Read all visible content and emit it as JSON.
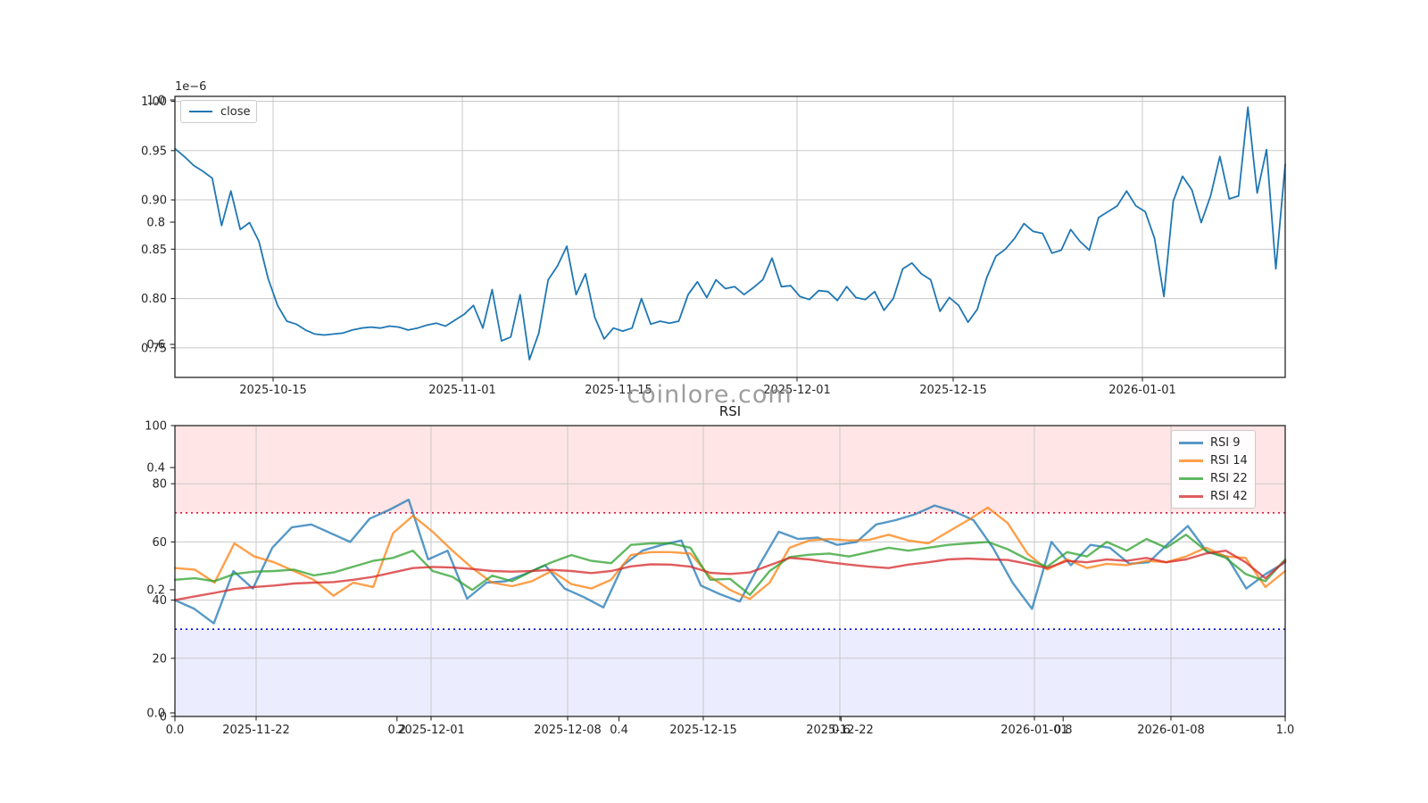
{
  "watermark": "coinlore.com",
  "colors": {
    "price_line": "#1f77b4",
    "rsi9": "#1f77b4",
    "rsi14": "#ff7f0e",
    "rsi22": "#2ca02c",
    "rsi42": "#d62728",
    "overbought_line": "#dc143c",
    "oversold_line": "#0000cd",
    "overbought_fill": "rgba(255,0,0,0.10)",
    "oversold_fill": "rgba(40,40,255,0.09)",
    "grid": "#c9c9c9",
    "spine": "#262626",
    "tick_text": "#262626"
  },
  "price_chart": {
    "legend_label": "close",
    "offset_label": "1e−6",
    "y_ticks": [
      "0.75",
      "0.80",
      "0.85",
      "0.90",
      "0.95",
      "1.00"
    ],
    "x_ticks": [
      "2025-10-15",
      "2025-11-01",
      "2025-11-15",
      "2025-12-01",
      "2025-12-15",
      "2026-01-01"
    ]
  },
  "rsi_chart": {
    "title": "RSI",
    "legend": [
      "RSI 9",
      "RSI 14",
      "RSI 22",
      "RSI 42"
    ],
    "y_ticks": [
      "0",
      "20",
      "40",
      "60",
      "80",
      "100"
    ],
    "x_ticks": [
      "2025-11-22",
      "2025-12-01",
      "2025-12-08",
      "2025-12-15",
      "2025-12-22",
      "2026-01-01",
      "2026-01-08"
    ],
    "overbought_level": 70,
    "oversold_level": 30
  },
  "hidden_axis": {
    "y_ticks_upper": [
      "1.0",
      "0.8",
      "0.6"
    ],
    "y_ticks_lower": [
      "0.4",
      "0.2",
      "0.0"
    ],
    "x_ticks": [
      "0.0",
      "0.2",
      "0.4",
      "0.6",
      "0.8",
      "1.0"
    ]
  },
  "chart_data": [
    {
      "type": "line",
      "title": "",
      "ylabel": "",
      "scale_factor": "1e-6",
      "ylim": [
        0.72,
        1.005
      ],
      "y_tick_values": [
        0.75,
        0.8,
        0.85,
        0.9,
        0.95,
        1.0
      ],
      "x_tick_labels": [
        "2025-10-15",
        "2025-11-01",
        "2025-11-15",
        "2025-12-01",
        "2025-12-15",
        "2026-01-01"
      ],
      "grid": true,
      "legend_position": "upper-left",
      "series": [
        {
          "name": "close",
          "values": [
            0.952,
            0.944,
            0.935,
            0.929,
            0.922,
            0.874,
            0.909,
            0.87,
            0.877,
            0.858,
            0.82,
            0.793,
            0.777,
            0.774,
            0.768,
            0.764,
            0.763,
            0.764,
            0.765,
            0.768,
            0.77,
            0.771,
            0.77,
            0.772,
            0.771,
            0.768,
            0.77,
            0.773,
            0.775,
            0.772,
            0.778,
            0.784,
            0.793,
            0.77,
            0.809,
            0.757,
            0.761,
            0.804,
            0.738,
            0.765,
            0.819,
            0.833,
            0.853,
            0.804,
            0.825,
            0.781,
            0.759,
            0.77,
            0.767,
            0.77,
            0.8,
            0.774,
            0.777,
            0.775,
            0.777,
            0.804,
            0.817,
            0.801,
            0.819,
            0.81,
            0.812,
            0.804,
            0.811,
            0.819,
            0.841,
            0.812,
            0.813,
            0.802,
            0.799,
            0.808,
            0.807,
            0.798,
            0.812,
            0.801,
            0.799,
            0.807,
            0.788,
            0.8,
            0.83,
            0.836,
            0.825,
            0.819,
            0.787,
            0.801,
            0.793,
            0.776,
            0.789,
            0.821,
            0.843,
            0.85,
            0.861,
            0.876,
            0.868,
            0.866,
            0.846,
            0.849,
            0.87,
            0.858,
            0.849,
            0.882,
            0.888,
            0.894,
            0.909,
            0.894,
            0.888,
            0.861,
            0.802,
            0.899,
            0.924,
            0.91,
            0.877,
            0.904,
            0.944,
            0.901,
            0.904,
            0.994,
            0.907,
            0.951,
            0.83,
            0.936
          ]
        }
      ]
    },
    {
      "type": "line",
      "title": "RSI",
      "ylim": [
        0,
        100
      ],
      "y_tick_values": [
        0,
        20,
        40,
        60,
        80,
        100
      ],
      "x_tick_labels": [
        "2025-11-22",
        "2025-12-01",
        "2025-12-08",
        "2025-12-15",
        "2025-12-22",
        "2026-01-01",
        "2026-01-08"
      ],
      "grid": true,
      "legend_position": "upper-right",
      "overbought": 70,
      "oversold": 30,
      "series": [
        {
          "name": "RSI 9",
          "values": [
            40,
            37,
            32,
            50,
            44,
            58,
            65,
            66,
            63,
            60,
            68,
            71,
            74.5,
            54,
            57,
            40.5,
            46,
            46.5,
            49,
            52,
            44,
            41,
            37.5,
            52,
            57,
            59,
            60.5,
            45,
            42,
            39.5,
            52,
            63.5,
            61,
            61.5,
            59,
            60,
            66,
            67.5,
            69.5,
            72.5,
            70.5,
            67.5,
            58,
            46,
            37,
            60,
            52,
            59,
            58,
            52.5,
            53,
            59.5,
            65.5,
            56.5,
            55,
            44,
            49,
            53
          ]
        },
        {
          "name": "RSI 14",
          "values": [
            51,
            50.5,
            46,
            59.5,
            55,
            53,
            50,
            47,
            41.5,
            46,
            44.5,
            63,
            69,
            63.5,
            57,
            51,
            46,
            44.8,
            46.5,
            50,
            45.5,
            44,
            47,
            55.5,
            56.5,
            56.5,
            56,
            48,
            43.5,
            40.4,
            46,
            58,
            60.5,
            61,
            60.5,
            60.7,
            62.5,
            60.5,
            59.5,
            63.5,
            67.5,
            71.8,
            66.5,
            56,
            50.5,
            54,
            51,
            52.5,
            52,
            53.5,
            53,
            55,
            58,
            55,
            54.5,
            44.5,
            50
          ]
        },
        {
          "name": "RSI 22",
          "values": [
            47,
            47.5,
            46.5,
            49,
            49.8,
            50,
            50.5,
            48.5,
            49.5,
            51.5,
            53.5,
            54.5,
            57,
            50,
            48,
            43.5,
            48.4,
            46.5,
            50,
            53,
            55.5,
            53.5,
            52.7,
            59,
            59.5,
            59.5,
            58,
            47,
            47.3,
            41.8,
            50,
            54.8,
            55.6,
            56,
            55,
            56.5,
            58,
            57,
            58,
            59,
            59.5,
            60,
            57.5,
            54,
            51.5,
            56.5,
            55,
            60,
            57,
            61,
            58,
            62.5,
            57,
            54.5,
            49,
            46.5,
            54
          ]
        },
        {
          "name": "RSI 42",
          "values": [
            40,
            41.3,
            42.5,
            43.8,
            44.5,
            45,
            45.7,
            46,
            46.2,
            47,
            48,
            49.5,
            51,
            51.4,
            51.2,
            50.7,
            50,
            49.8,
            50,
            50.4,
            50,
            49.3,
            50,
            51.6,
            52.3,
            52.2,
            51.5,
            49.4,
            49,
            49.5,
            52,
            54.5,
            54,
            53,
            52.2,
            51.5,
            51,
            52.2,
            53,
            54,
            54.3,
            54,
            53.8,
            52.5,
            51,
            53.5,
            53,
            54,
            53.5,
            54.5,
            53,
            54,
            56,
            57,
            53,
            47.5,
            53.5
          ]
        }
      ]
    }
  ]
}
